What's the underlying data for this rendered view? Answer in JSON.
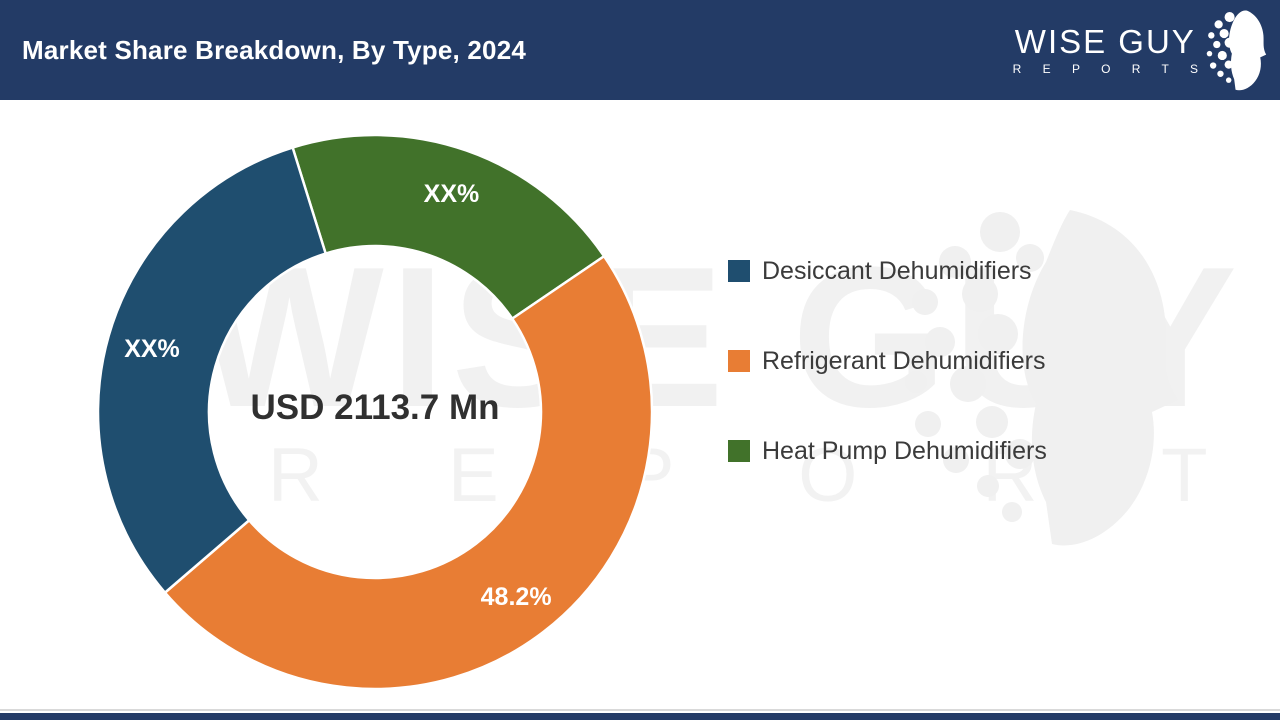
{
  "colors": {
    "header_bg": "#233B66",
    "footer_bg": "#233B66",
    "divider_gray": "#D9D9D9",
    "blue": "#1F4E6F",
    "orange": "#E87D34",
    "green": "#41722A",
    "center_text": "#303030",
    "legend_text": "#3B3B3B",
    "watermark_gray": "#F1F1F1"
  },
  "header": {
    "title": "Market Share Breakdown, By Type, 2024",
    "logo": {
      "line1": "WISE GUY",
      "line2": "R E P O R T S"
    }
  },
  "chart_data": {
    "type": "donut",
    "title": "Market Share Breakdown, By Type, 2024",
    "center_label": "USD 2113.7 Mn",
    "legend_position": "right",
    "start_angle_deg": -17.3,
    "slices": [
      {
        "id": "heat-pump",
        "name": "Heat Pump Dehumidifiers",
        "value_pct": 20.3,
        "estimated": true,
        "label": "XX%",
        "color": "#41722A"
      },
      {
        "id": "refrigerant",
        "name": "Refrigerant Dehumidifiers",
        "value_pct": 48.2,
        "estimated": false,
        "label": "48.2%",
        "color": "#E87D34"
      },
      {
        "id": "desiccant",
        "name": "Desiccant Dehumidifiers",
        "value_pct": 31.5,
        "estimated": true,
        "label": "XX%",
        "color": "#1F4E6F"
      }
    ]
  },
  "legend": {
    "items": [
      {
        "label": "Desiccant Dehumidifiers",
        "color": "#1F4E6F"
      },
      {
        "label": "Refrigerant Dehumidifiers",
        "color": "#E87D34"
      },
      {
        "label": "Heat Pump Dehumidifiers",
        "color": "#41722A"
      }
    ]
  },
  "watermark": {
    "line1": "WISE GUY",
    "line2": "R E P O R T S"
  }
}
